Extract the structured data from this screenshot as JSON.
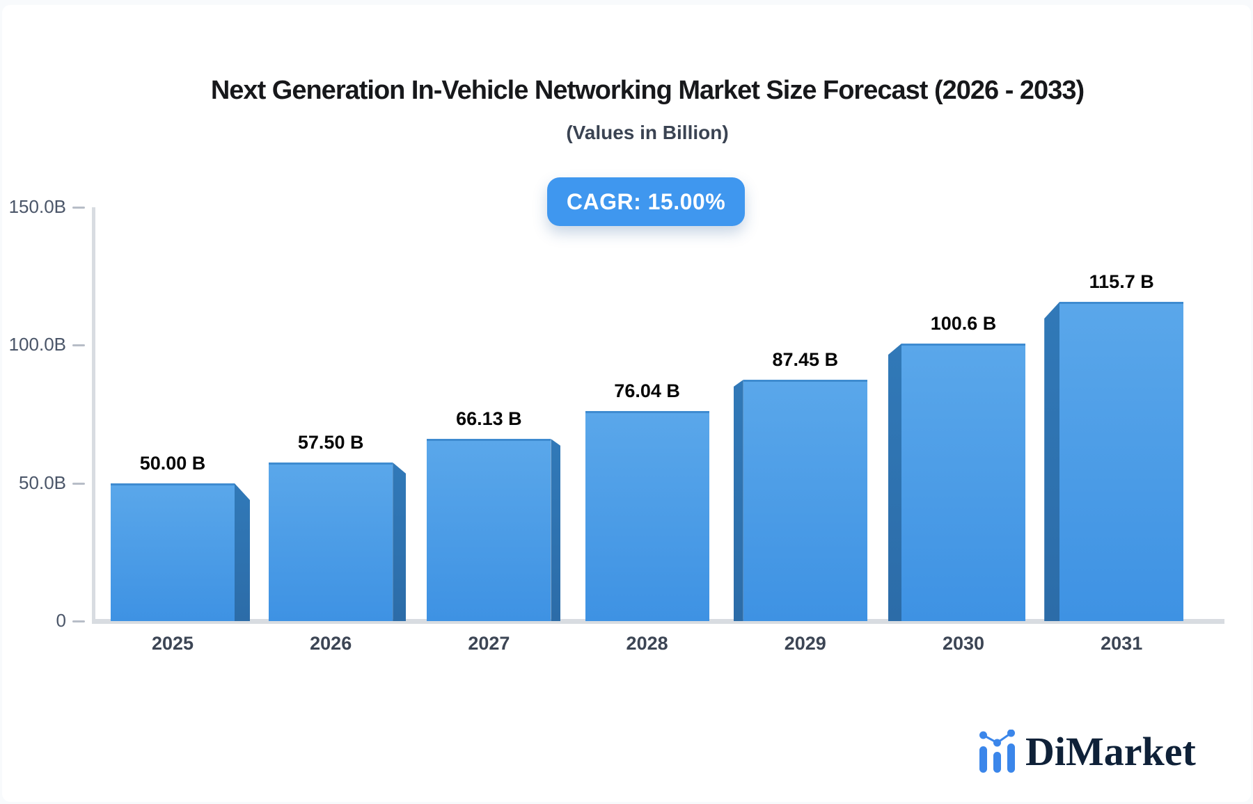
{
  "header": {
    "title": "Next Generation In-Vehicle Networking Market Size Forecast (2026 - 2033)",
    "subtitle": "(Values in Billion)",
    "cagr_label": "CAGR: 15.00%",
    "cagr_color": "#3f97ef"
  },
  "chart_data": {
    "type": "bar",
    "title": "Next Generation In-Vehicle Networking Market Size Forecast (2026 - 2033)",
    "subtitle": "(Values in Billion)",
    "categories": [
      "2025",
      "2026",
      "2027",
      "2028",
      "2029",
      "2030",
      "2031"
    ],
    "values": [
      50.0,
      57.5,
      66.13,
      76.04,
      87.45,
      100.6,
      115.7
    ],
    "value_labels": [
      "50.00 B",
      "57.50 B",
      "66.13 B",
      "76.04 B",
      "87.45 B",
      "100.6 B",
      "115.7 B"
    ],
    "xlabel": "",
    "ylabel": "",
    "ylim": [
      0,
      150
    ],
    "yticks": [
      {
        "value": 150,
        "label": "150.0B"
      },
      {
        "value": 100,
        "label": "100.0B"
      },
      {
        "value": 50,
        "label": "50.0B"
      },
      {
        "value": 0,
        "label": "0"
      }
    ],
    "grid": false,
    "legend": null,
    "bar_style": "3d-perspective-center",
    "colors": {
      "bar_top": "#5aa7ea",
      "bar_bottom": "#3e92e3",
      "bar_top_edge": "#3e8bd0",
      "bar_side_top": "#3179b8",
      "bar_side_bottom": "#2c6ca8",
      "axis": "#d8dce1"
    }
  },
  "footer": {
    "brand": "DiMarket",
    "brand_color": "#0f2138",
    "icon": "bar-line-chart-icon",
    "icon_color": "#3b86ea"
  }
}
